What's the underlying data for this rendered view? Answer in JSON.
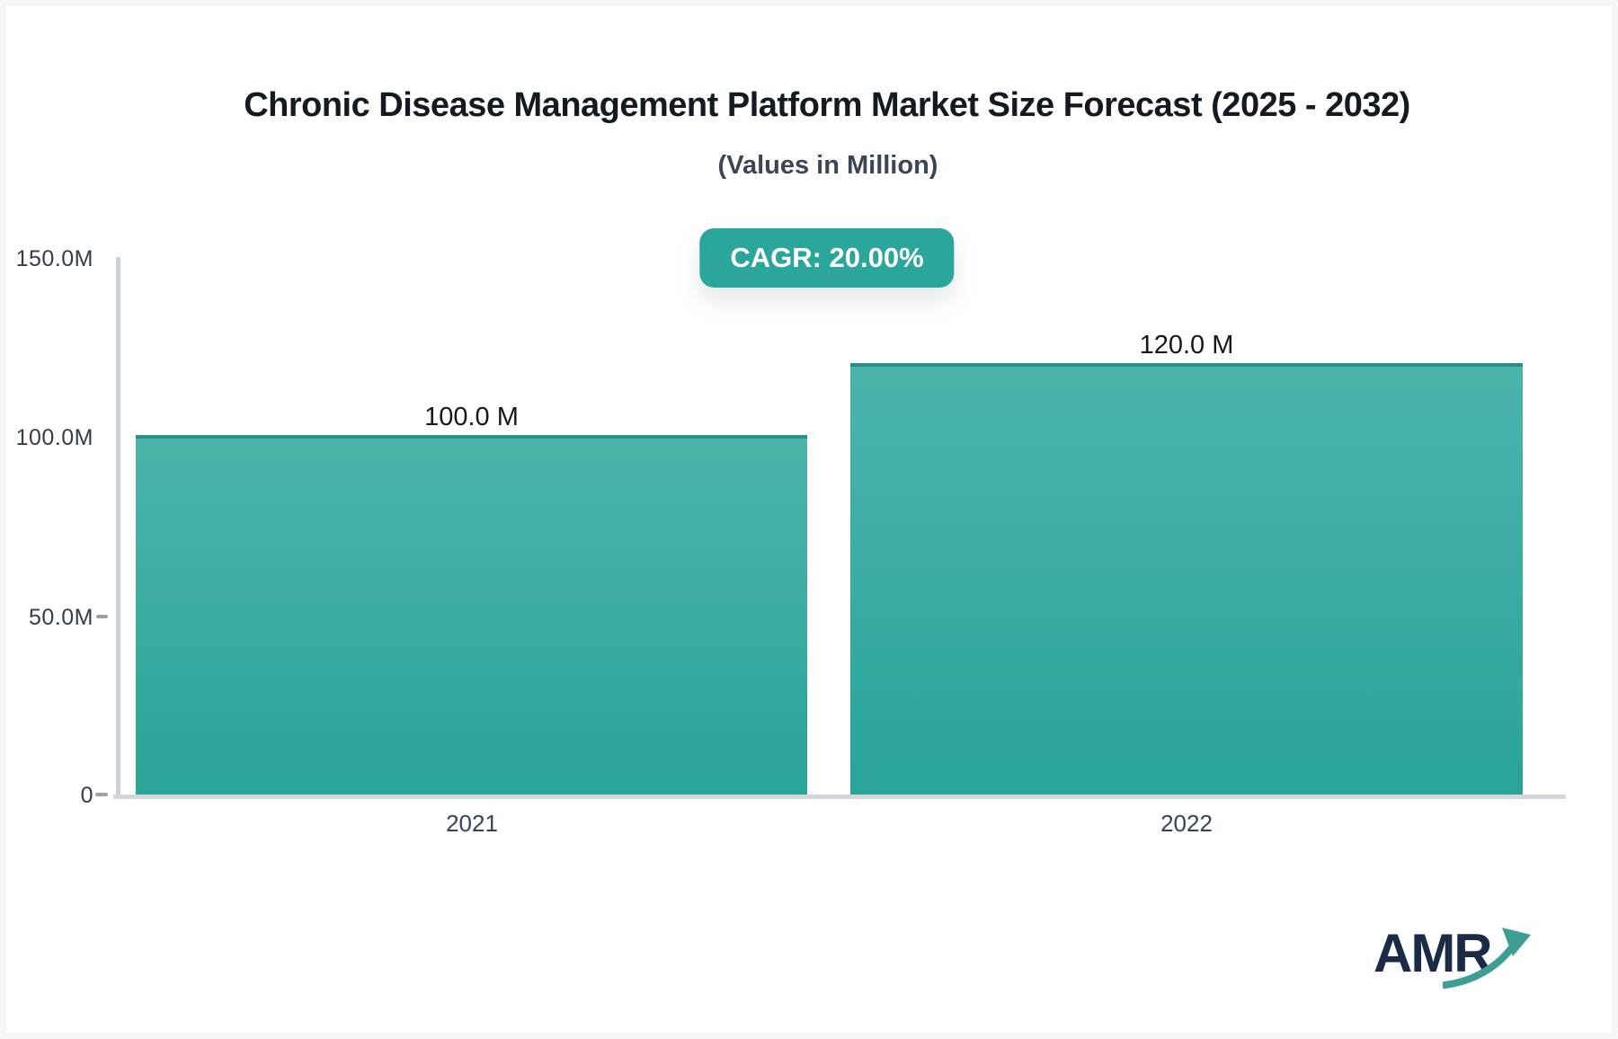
{
  "title": "Chronic Disease Management Platform Market Size Forecast (2025 - 2032)",
  "subtitle": "(Values in Million)",
  "badge": {
    "label": "CAGR: 20.00%"
  },
  "chart_data": {
    "type": "bar",
    "categories": [
      "2021",
      "2022"
    ],
    "values": [
      100.0,
      120.0
    ],
    "value_labels": [
      "100.0 M",
      "120.0 M"
    ],
    "title": "Chronic Disease Management Platform Market Size Forecast (2025 - 2032)",
    "subtitle": "(Values in Million)",
    "xlabel": "",
    "ylabel": "",
    "ytick_labels": [
      "150.0M",
      "100.0M",
      "50.0M",
      "0"
    ],
    "ylim": [
      0,
      150
    ],
    "grid": false,
    "legend": "none",
    "bar_color_top": "#4bb4ab",
    "bar_color_bottom": "#2aa499",
    "bar_border_color": "#2a8f88"
  },
  "colors": {
    "badge_bg": "#2ba69b",
    "axis": "#ccd2d8",
    "logo_navy": "#1b2b47",
    "logo_teal": "#3f9e94"
  },
  "logo": {
    "text": "AMR",
    "icon": "growth-arrow-icon"
  }
}
